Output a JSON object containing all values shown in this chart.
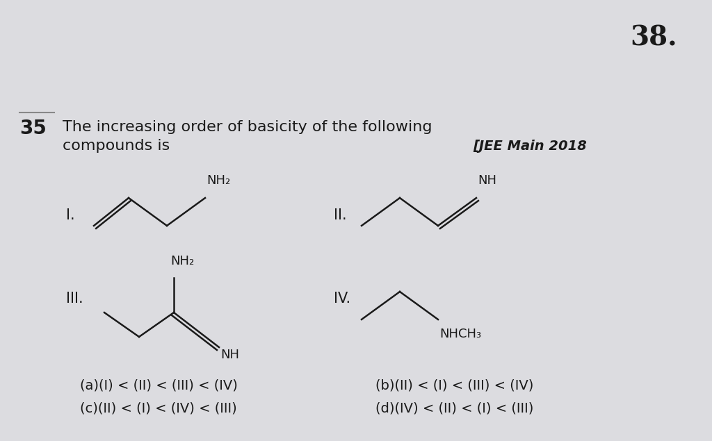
{
  "bg_color": "#dcdce0",
  "text_color": "#1a1a1a",
  "question_number": "35",
  "question_text_line1": "The increasing order of basicity of the following",
  "question_text_line2": "compounds is",
  "reference": "[JEE Main 2018",
  "page_number": "38.",
  "options_left": [
    "(a)(I) < (II) < (III) < (IV)",
    "(c)(II) < (I) < (IV) < (III)"
  ],
  "options_right": [
    "(b)(II) < (I) < (III) < (IV)",
    "(d)(IV) < (II) < (I) < (III)"
  ]
}
